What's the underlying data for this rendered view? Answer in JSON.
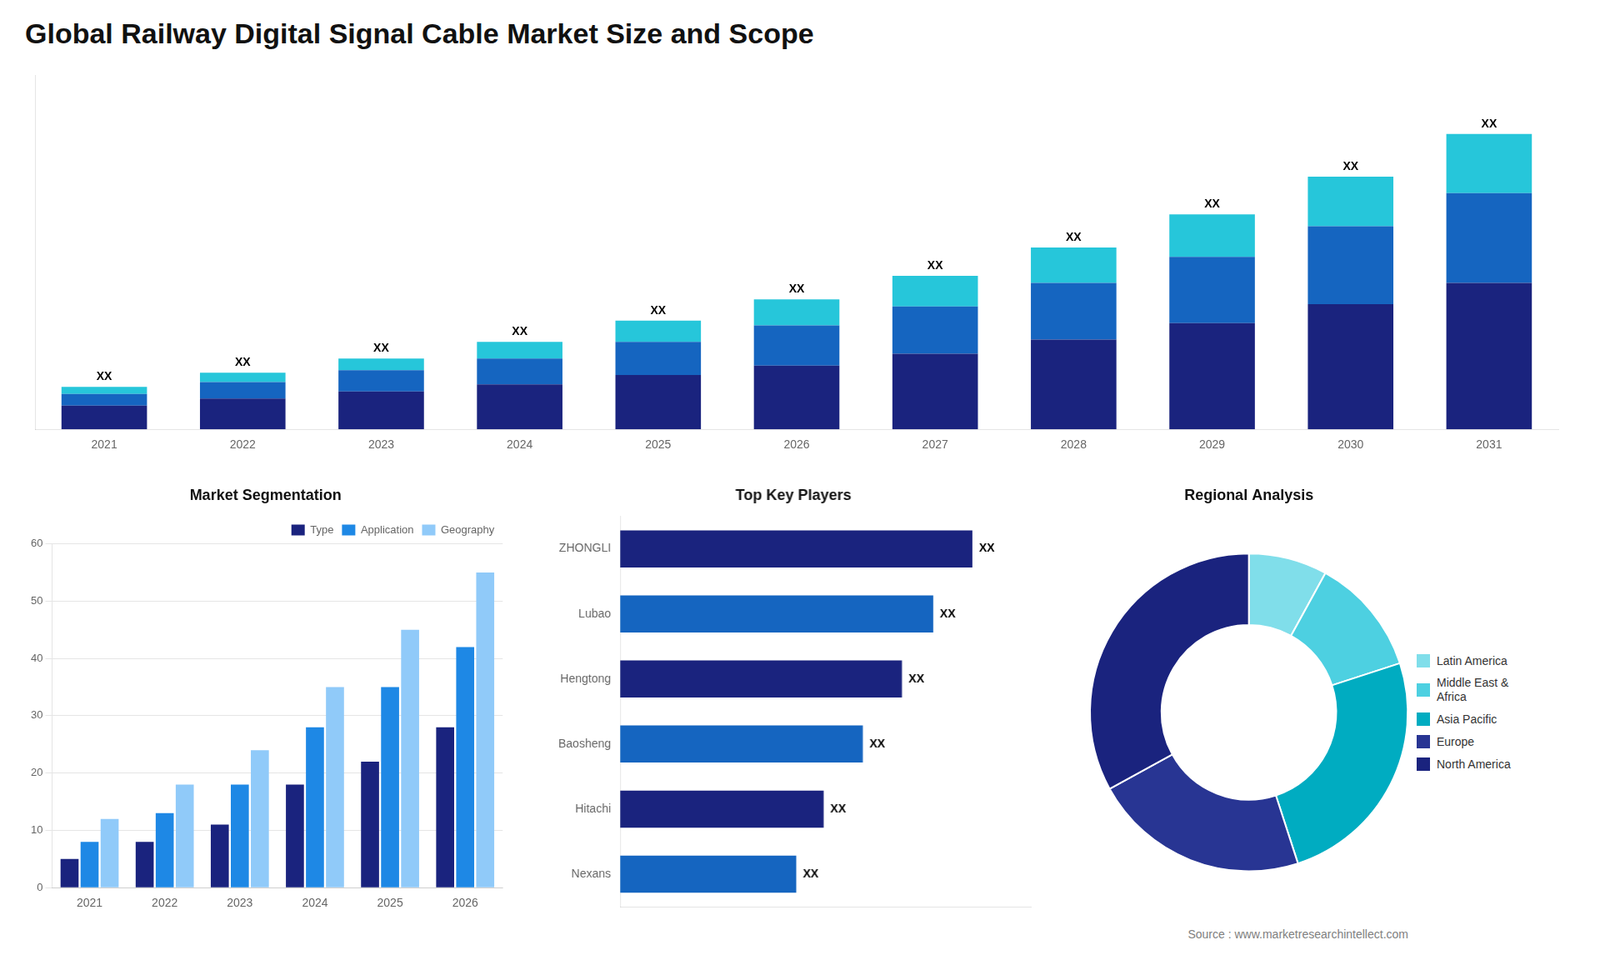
{
  "title": "Global Railway Digital Signal Cable Market Size and Scope",
  "annotations": [
    "Source : www.marketresearchintellect.com"
  ],
  "chart_data": [
    {
      "type": "bar",
      "stacked": true,
      "categories": [
        "2021",
        "2022",
        "2023",
        "2024",
        "2025",
        "2026",
        "2027",
        "2028",
        "2029",
        "2030",
        "2031"
      ],
      "series": [
        {
          "color": "#1a237e",
          "values": [
            1,
            1.3,
            1.6,
            1.9,
            2.3,
            2.7,
            3.2,
            3.8,
            4.5,
            5.3,
            6.2
          ]
        },
        {
          "color": "#1565c0",
          "values": [
            0.5,
            0.7,
            0.9,
            1.1,
            1.4,
            1.7,
            2.0,
            2.4,
            2.8,
            3.3,
            3.8
          ]
        },
        {
          "color": "#26c6da",
          "values": [
            0.3,
            0.4,
            0.5,
            0.7,
            0.9,
            1.1,
            1.3,
            1.5,
            1.8,
            2.1,
            2.5
          ]
        }
      ],
      "ylim": [
        0,
        15
      ],
      "tick_labels": "x",
      "grid": false,
      "annotations": [
        {
          "category": "2021",
          "text": "XX"
        },
        {
          "category": "2022",
          "text": "XX"
        },
        {
          "category": "2023",
          "text": "XX"
        },
        {
          "category": "2024",
          "text": "XX"
        },
        {
          "category": "2025",
          "text": "XX"
        },
        {
          "category": "2026",
          "text": "XX"
        },
        {
          "category": "2027",
          "text": "XX"
        },
        {
          "category": "2028",
          "text": "XX"
        },
        {
          "category": "2029",
          "text": "XX"
        },
        {
          "category": "2030",
          "text": "XX"
        },
        {
          "category": "2031",
          "text": "XX"
        }
      ]
    },
    {
      "type": "bar",
      "title": "Market Segmentation",
      "categories": [
        "2021",
        "2022",
        "2023",
        "2024",
        "2025",
        "2026"
      ],
      "series": [
        {
          "name": "Type",
          "color": "#1a237e",
          "values": [
            5,
            8,
            11,
            18,
            22,
            28
          ]
        },
        {
          "name": "Application",
          "color": "#1e88e5",
          "values": [
            8,
            13,
            18,
            28,
            35,
            42
          ]
        },
        {
          "name": "Geography",
          "color": "#90caf9",
          "values": [
            12,
            18,
            24,
            35,
            45,
            55
          ]
        }
      ],
      "ylim": [
        0,
        60
      ],
      "yticks": [
        0,
        10,
        20,
        30,
        40,
        50,
        60
      ],
      "grid": true,
      "legend": "upper right"
    },
    {
      "type": "bar",
      "orientation": "horizontal",
      "title": "Top Key Players",
      "categories": [
        "ZHONGLI",
        "Lubao",
        "Hengtong",
        "Baosheng",
        "Hitachi",
        "Nexans"
      ],
      "values": [
        90,
        80,
        72,
        62,
        52,
        45
      ],
      "colors": [
        "#1a237e",
        "#1565c0",
        "#1a237e",
        "#1565c0",
        "#1a237e",
        "#1565c0"
      ],
      "xlim": [
        0,
        105
      ],
      "tick_labels": "y",
      "grid": false,
      "annotations": [
        {
          "category": "ZHONGLI",
          "text": "XX"
        },
        {
          "category": "Lubao",
          "text": "XX"
        },
        {
          "category": "Hengtong",
          "text": "XX"
        },
        {
          "category": "Baosheng",
          "text": "XX"
        },
        {
          "category": "Hitachi",
          "text": "XX"
        },
        {
          "category": "Nexans",
          "text": "XX"
        }
      ]
    },
    {
      "type": "doughnut",
      "title": "Regional Analysis",
      "categories": [
        "Latin America",
        "Middle East &\nAfrica",
        "Asia Pacific",
        "Europe",
        "North America"
      ],
      "values": [
        8,
        12,
        25,
        22,
        33
      ],
      "colors": [
        "#80deea",
        "#4dd0e1",
        "#00acc1",
        "#283593",
        "#1a237e"
      ],
      "legend": "right"
    }
  ]
}
